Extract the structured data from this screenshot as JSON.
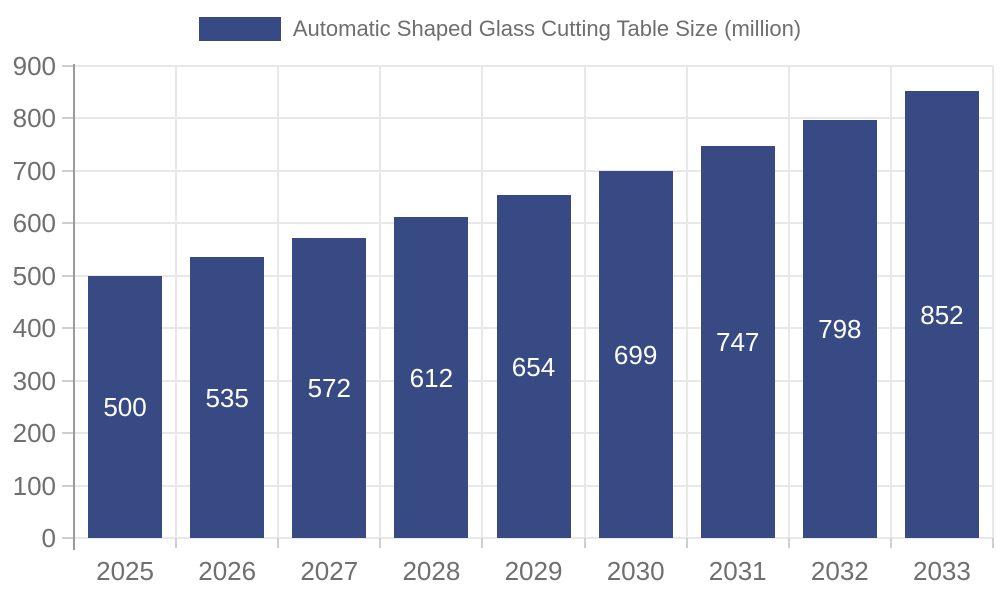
{
  "chart_data": {
    "type": "bar",
    "title": "Automatic Shaped Glass Cutting Table Size (million)",
    "series_name": "Automatic Shaped Glass Cutting Table Size (million)",
    "categories": [
      "2025",
      "2026",
      "2027",
      "2028",
      "2029",
      "2030",
      "2031",
      "2032",
      "2033"
    ],
    "values": [
      500,
      535,
      572,
      612,
      654,
      699,
      747,
      798,
      852
    ],
    "xlabel": "",
    "ylabel": "",
    "ylim": [
      0,
      900
    ],
    "ytick_step": 100,
    "yticks": [
      0,
      100,
      200,
      300,
      400,
      500,
      600,
      700,
      800,
      900
    ],
    "grid": true,
    "legend_position": "top",
    "bar_color": "#384a83",
    "bar_value_label_color": "#ffffff",
    "axis_label_color": "#6f6f6f",
    "gridline_color": "#e8e8e8",
    "axis_line_color": "#9b9b9b"
  }
}
